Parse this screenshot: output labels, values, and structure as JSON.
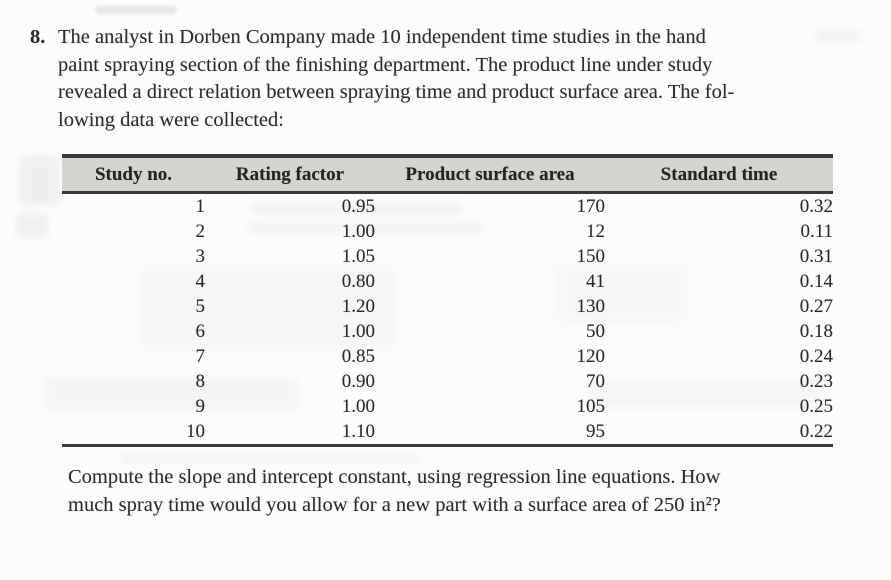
{
  "document": {
    "problem": {
      "number": "8.",
      "lines": [
        "The analyst in Dorben Company made 10 independent time studies in the hand",
        "paint spraying section of the finishing department. The product line under study",
        "revealed a direct relation between spraying time and product surface area. The fol-",
        "lowing data were collected:"
      ]
    },
    "table": {
      "columns": [
        "Study no.",
        "Rating factor",
        "Product surface area",
        "Standard time"
      ],
      "rows": [
        [
          "1",
          "0.95",
          "170",
          "0.32"
        ],
        [
          "2",
          "1.00",
          "12",
          "0.11"
        ],
        [
          "3",
          "1.05",
          "150",
          "0.31"
        ],
        [
          "4",
          "0.80",
          "41",
          "0.14"
        ],
        [
          "5",
          "1.20",
          "130",
          "0.27"
        ],
        [
          "6",
          "1.00",
          "50",
          "0.18"
        ],
        [
          "7",
          "0.85",
          "120",
          "0.24"
        ],
        [
          "8",
          "0.90",
          "70",
          "0.23"
        ],
        [
          "9",
          "1.00",
          "105",
          "0.25"
        ],
        [
          "10",
          "1.10",
          "95",
          "0.22"
        ]
      ]
    },
    "question": {
      "lines": [
        "Compute the slope and intercept constant, using regression line equations. How",
        "much spray time would you allow for a new part with a surface area of 250 in²?"
      ]
    }
  },
  "colors": {
    "header_band": "#d5d4d1",
    "rule": "#3b3a38",
    "text": "#2d2d2d",
    "page_background": "#fcfcfb"
  }
}
